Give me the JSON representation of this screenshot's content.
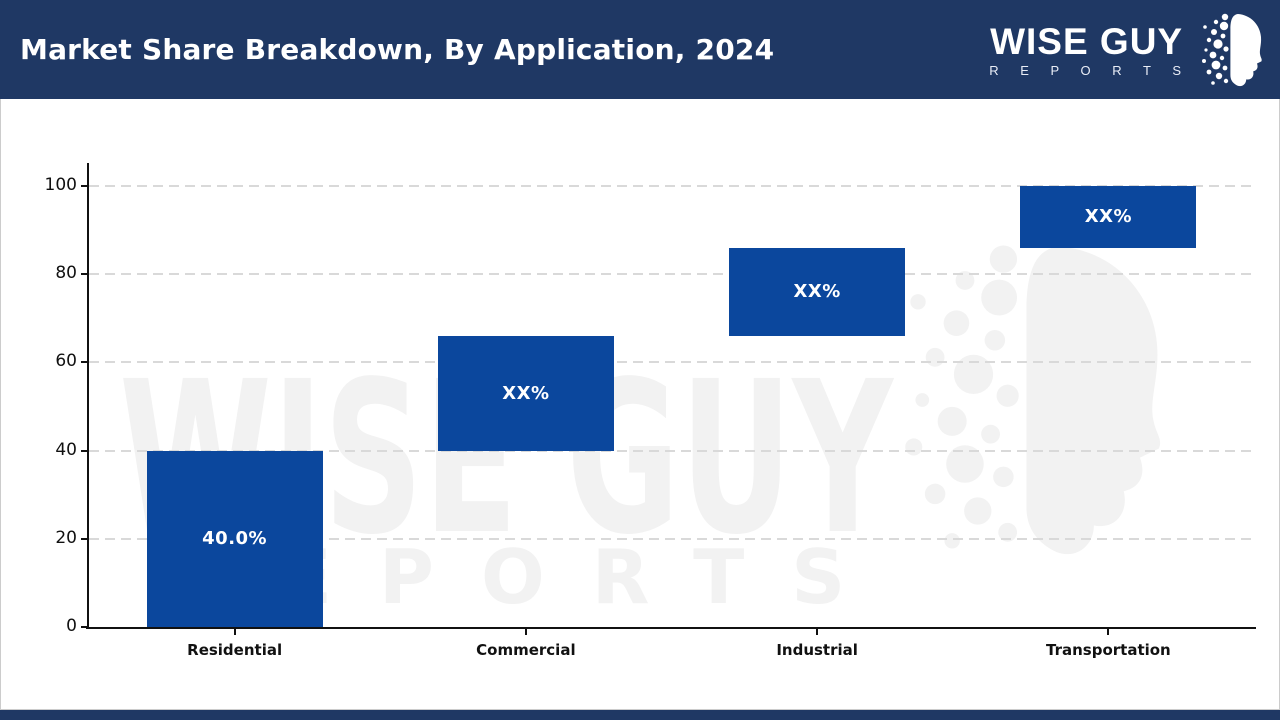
{
  "header": {
    "title": "Market Share Breakdown, By Application, 2024",
    "bg_color": "#1f3864",
    "logo": {
      "wordmark": "WISE GUY",
      "subtext": "R E P O R T S"
    }
  },
  "chart_data": {
    "type": "bar",
    "variant": "waterfall",
    "title": "Market Share Breakdown, By Application, 2024",
    "categories": [
      "Residential",
      "Commercial",
      "Industrial",
      "Transportation"
    ],
    "segments": [
      {
        "category": "Residential",
        "start": 0,
        "end": 40,
        "label": "40.0%"
      },
      {
        "category": "Commercial",
        "start": 40,
        "end": 66,
        "label": "XX%"
      },
      {
        "category": "Industrial",
        "start": 66,
        "end": 86,
        "label": "XX%"
      },
      {
        "category": "Transportation",
        "start": 86,
        "end": 100,
        "label": "XX%"
      }
    ],
    "ylim": [
      0,
      100
    ],
    "yticks": [
      0,
      20,
      40,
      60,
      80,
      100
    ],
    "xlabel": "",
    "ylabel": "",
    "bar_color": "#0b479d",
    "grid": "horizontal-dashed",
    "legend": "none"
  },
  "watermark": {
    "wordmark": "WISE GUY",
    "subtext": "REPORTS"
  },
  "footer": {
    "bg_color": "#1f3864"
  }
}
